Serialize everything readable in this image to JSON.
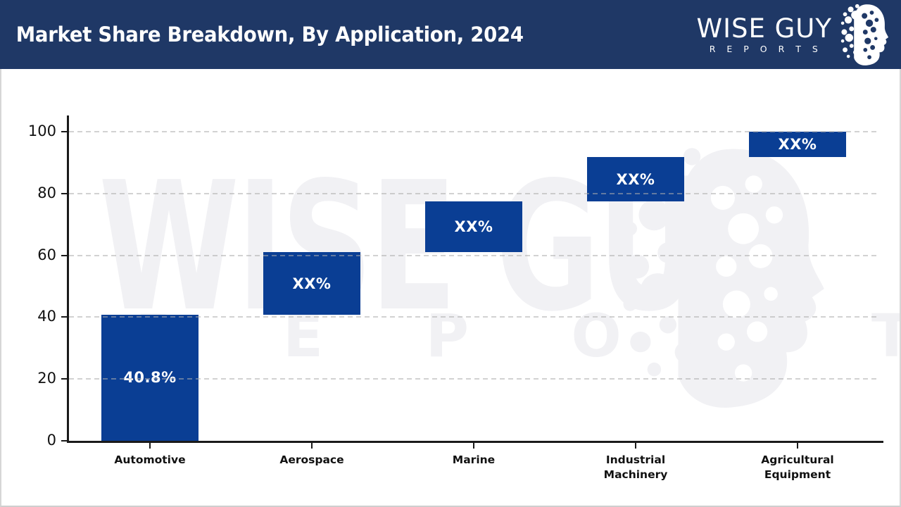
{
  "header": {
    "title": "Market Share Breakdown, By Application, 2024",
    "logo": {
      "line1": "WISE GUY",
      "line2": "REPORTS"
    }
  },
  "watermark": {
    "line1": "WISE GUY",
    "line2": "REPORTS"
  },
  "colors": {
    "header_bg": "#1f3866",
    "bar_blue": "#0a3e94",
    "grid_gray": "#d4d4d4",
    "watermark_gray": "#f1f1f4",
    "axis_black": "#1a1a1a",
    "bar_label_white": "#ffffff"
  },
  "chart_data": {
    "type": "bar",
    "subtype": "waterfall",
    "title": "Market Share Breakdown, By Application, 2024",
    "categories": [
      "Automotive",
      "Aerospace",
      "Marine",
      "Industrial Machinery",
      "Agricultural Equipment"
    ],
    "segments": [
      {
        "category": "Automotive",
        "start": 0,
        "end": 40.8,
        "label": "40.8%"
      },
      {
        "category": "Aerospace",
        "start": 40.8,
        "end": 61.0,
        "label": "XX%"
      },
      {
        "category": "Marine",
        "start": 61.0,
        "end": 77.4,
        "label": "XX%"
      },
      {
        "category": "Industrial Machinery",
        "start": 77.4,
        "end": 91.8,
        "label": "XX%"
      },
      {
        "category": "Agricultural Equipment",
        "start": 91.8,
        "end": 100.0,
        "label": "XX%"
      }
    ],
    "y_ticks": [
      0,
      20,
      40,
      60,
      80,
      100
    ],
    "ylim": [
      0,
      100
    ],
    "xlabel": "",
    "ylabel": "",
    "grid": "horizontal dashed",
    "legend": "none",
    "bar_color": "#0a3e94",
    "value_label_color": "#ffffff"
  }
}
